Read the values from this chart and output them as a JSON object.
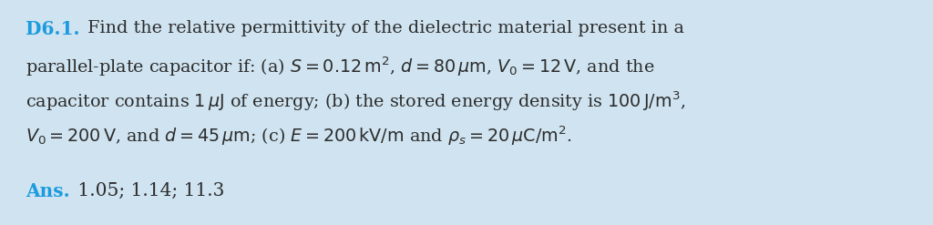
{
  "background_color": "#cfe3f0",
  "label_color": "#1b9be0",
  "text_color": "#2c2c2c",
  "ans_text_color": "#3a3a3a",
  "label": "D6.1.",
  "line1_rest": " Find the relative permittivity of the dielectric material present in a",
  "line2": "parallel-plate capacitor if: (a) $S = 0.12\\,\\mathrm{m}^2$, $d = 80\\,\\mu\\mathrm{m}$, $V_0 = 12\\,\\mathrm{V}$, and the",
  "line3": "capacitor contains $1\\,\\mu\\mathrm{J}$ of energy; (b) the stored energy density is $100\\,\\mathrm{J/m}^3$,",
  "line4": "$V_0 = 200\\,\\mathrm{V}$, and $d = 45\\,\\mu\\mathrm{m}$; (c) $E = 200\\,\\mathrm{kV/m}$ and $\\rho_s = 20\\,\\mu\\mathrm{C/m}^2$.",
  "ans_label": "Ans.",
  "ans_text": " 1.05; 1.14; 11.3",
  "label_fontsize": 14.5,
  "body_fontsize": 13.8,
  "ans_fontsize": 14.5
}
